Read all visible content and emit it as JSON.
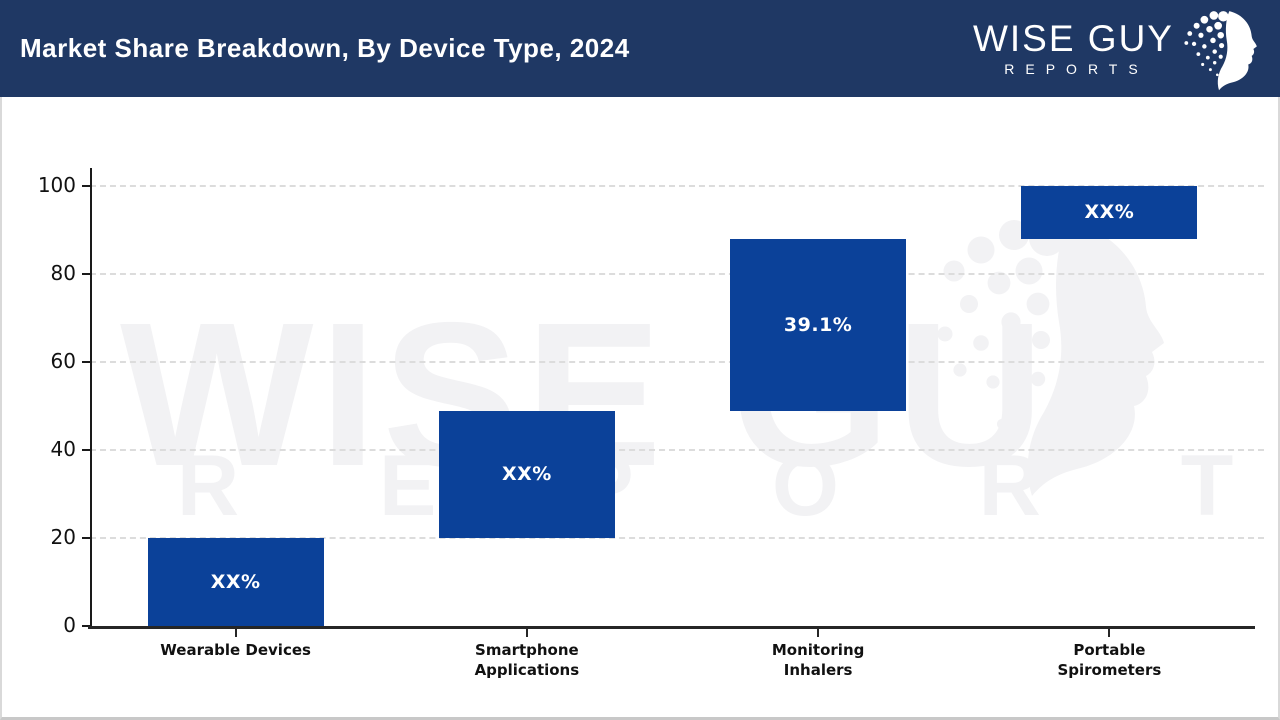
{
  "header": {
    "title": "Market Share Breakdown, By Device Type, 2024"
  },
  "logo": {
    "line1": "WISE GUY",
    "line2": "REPORTS"
  },
  "watermark": {
    "line1": "WISE GU",
    "line2": "R E P O R T S"
  },
  "chart_data": {
    "type": "bar",
    "subtype": "floating-waterfall",
    "title": "Market Share Breakdown, By Device Type, 2024",
    "categories": [
      "Wearable Devices",
      "Smartphone Applications",
      "Monitoring Inhalers",
      "Portable Spirometers"
    ],
    "category_lines": [
      [
        "Wearable Devices"
      ],
      [
        "Smartphone",
        "Applications"
      ],
      [
        "Monitoring",
        "Inhalers"
      ],
      [
        "Portable",
        "Spirometers"
      ]
    ],
    "series": [
      {
        "name": "Market Share (%)",
        "ranges": [
          [
            0,
            20
          ],
          [
            20,
            48.9
          ],
          [
            48.9,
            88
          ],
          [
            88,
            100
          ]
        ],
        "values": [
          20,
          28.9,
          39.1,
          12
        ]
      }
    ],
    "bar_labels": [
      "XX%",
      "XX%",
      "39.1%",
      "XX%"
    ],
    "ylim": [
      0,
      100
    ],
    "yticks": [
      0,
      20,
      40,
      60,
      80,
      100
    ],
    "grid": "horizontal-dashed",
    "legend": "none",
    "colors": {
      "bar": "#0b4199",
      "header_background": "#1f3864",
      "title_text": "#ffffff",
      "axis": "#1a1a1a",
      "gridline": "#dcdcdc",
      "watermark": "#f2f2f4"
    }
  }
}
